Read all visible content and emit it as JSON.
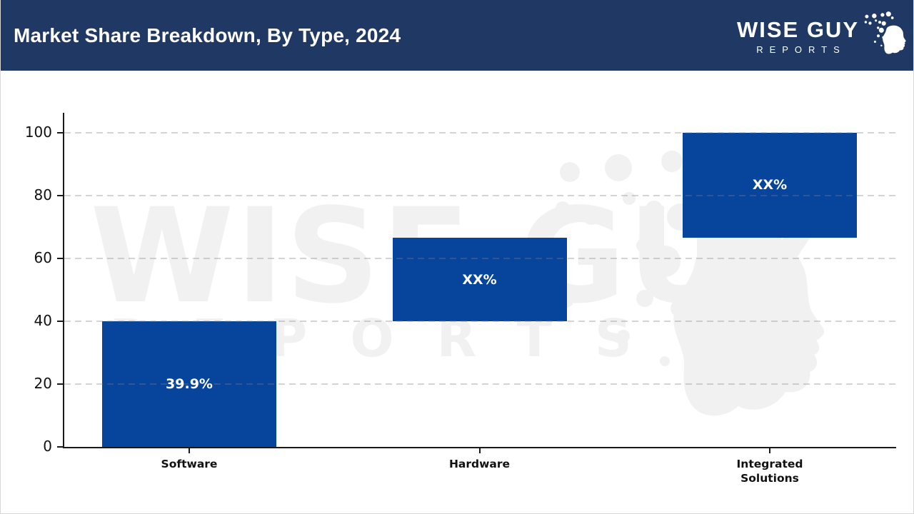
{
  "header": {
    "title": "Market Share Breakdown, By Type, 2024",
    "logo": {
      "brand_top": "WISE GUY",
      "brand_bottom": "REPORTS"
    }
  },
  "watermark": {
    "brand_top": "WISE GUY",
    "brand_bottom": "REPORTS"
  },
  "colors": {
    "header_bg": "#203864",
    "bar_fill": "#07449c",
    "bar_label_text": "#ffffff",
    "axis": "#1a1a1a",
    "grid": "rgba(127,127,127,0.33)",
    "watermark": "#f1f1f2",
    "page_border": "#d8d8d8"
  },
  "chart_data": {
    "type": "bar",
    "subtype": "floating-waterfall",
    "title": "Market Share Breakdown, By Type, 2024",
    "xlabel": "",
    "ylabel": "",
    "ylim": [
      0,
      100
    ],
    "yticks": [
      0,
      20,
      40,
      60,
      80,
      100
    ],
    "grid": "horizontal dashed, drawn over bars",
    "legend": "none",
    "categories": [
      "Software",
      "Hardware",
      "Integrated Solutions"
    ],
    "bars": [
      {
        "category": "Software",
        "start": 0,
        "end": 39.9,
        "label": "39.9%"
      },
      {
        "category": "Hardware",
        "start": 39.9,
        "end": 66.6,
        "label": "XX%"
      },
      {
        "category": "Integrated Solutions",
        "start": 66.6,
        "end": 100,
        "label": "XX%"
      }
    ]
  }
}
